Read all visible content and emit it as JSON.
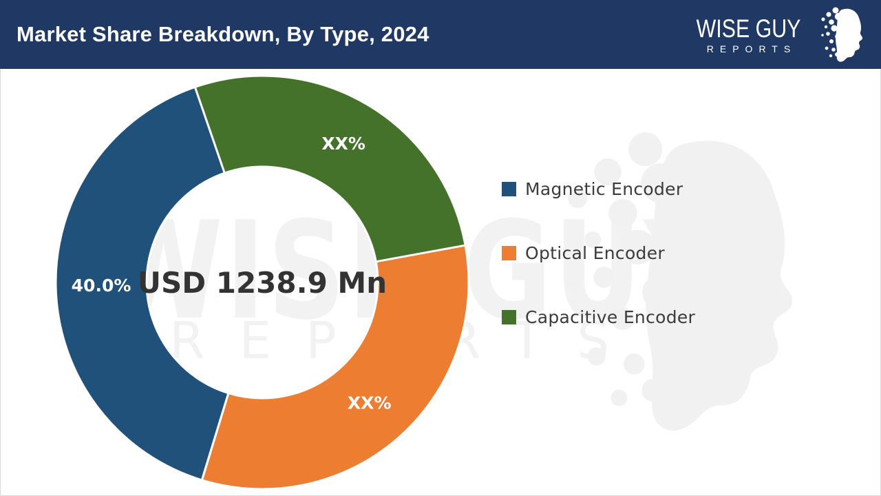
{
  "header": {
    "title": "Market Share Breakdown, By Type, 2024",
    "logo": {
      "name": "WISE GUY",
      "subtitle": "REPORTS"
    }
  },
  "watermark": {
    "text": "WISE GUY",
    "subtext": "REPORTS"
  },
  "chart_data": {
    "type": "pie",
    "variant": "donut",
    "title": "Market Share Breakdown, By Type, 2024",
    "center_label": "USD 1238.9 Mn",
    "legend_position": "right",
    "series": [
      {
        "name": "Magnetic Encoder",
        "value": 40.0,
        "value_label": "40.0%",
        "color": "#1F517B",
        "start_deg": 197.0
      },
      {
        "name": "Optical Encoder",
        "value": 32.6,
        "value_label": "XX%",
        "color": "#ED7D31",
        "start_deg": 79.6
      },
      {
        "name": "Capacitive Encoder",
        "value": 27.4,
        "value_label": "XX%",
        "color": "#44722B",
        "start_deg": 341.0
      }
    ]
  },
  "colors": {
    "header_bg": "#1F3864",
    "center_text": "#333333",
    "legend_text": "#3B3B3B",
    "border": "#D9D9D9"
  }
}
